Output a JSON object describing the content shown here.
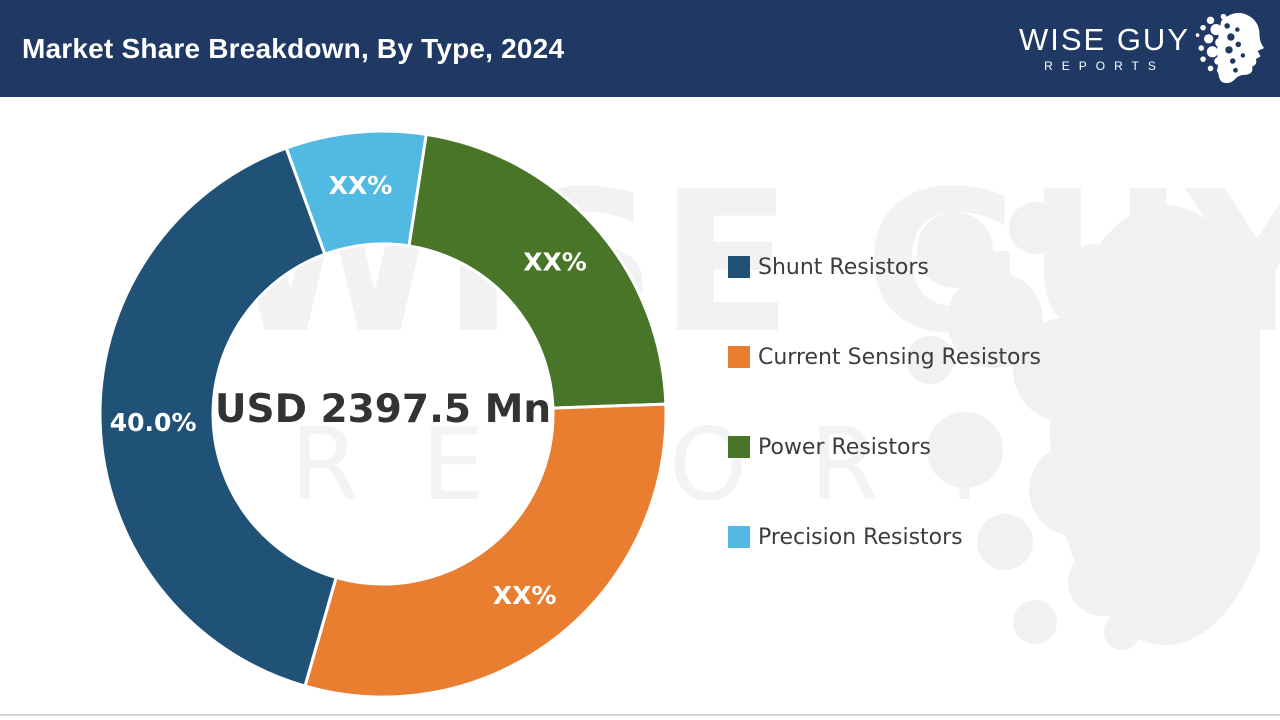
{
  "header": {
    "title": "Market Share Breakdown, By Type, 2024"
  },
  "logo": {
    "line1": "WISE GUY",
    "line2": "REPORTS"
  },
  "watermark": {
    "line1": "WISE GUY",
    "line2": "REPORTS"
  },
  "chart_data": {
    "type": "pie",
    "subtype": "donut",
    "title": "Market Share Breakdown, By Type, 2024",
    "center_label": "USD 2397.5 Mn",
    "start_angle_deg": -20,
    "legend_position": "right",
    "colors": [
      "#1f5276",
      "#e97e30",
      "#487527",
      "#52b9e2"
    ],
    "segments": [
      {
        "label": "Shunt Resistors",
        "value": 40,
        "display": "40.0%",
        "color": "#1f5276"
      },
      {
        "label": "Current Sensing Resistors",
        "value": 30,
        "display": "XX%",
        "color": "#e97e30"
      },
      {
        "label": "Power Resistors",
        "value": 22,
        "display": "XX%",
        "color": "#487527"
      },
      {
        "label": "Precision Resistors",
        "value": 8,
        "display": "XX%",
        "color": "#52b9e2"
      }
    ]
  }
}
